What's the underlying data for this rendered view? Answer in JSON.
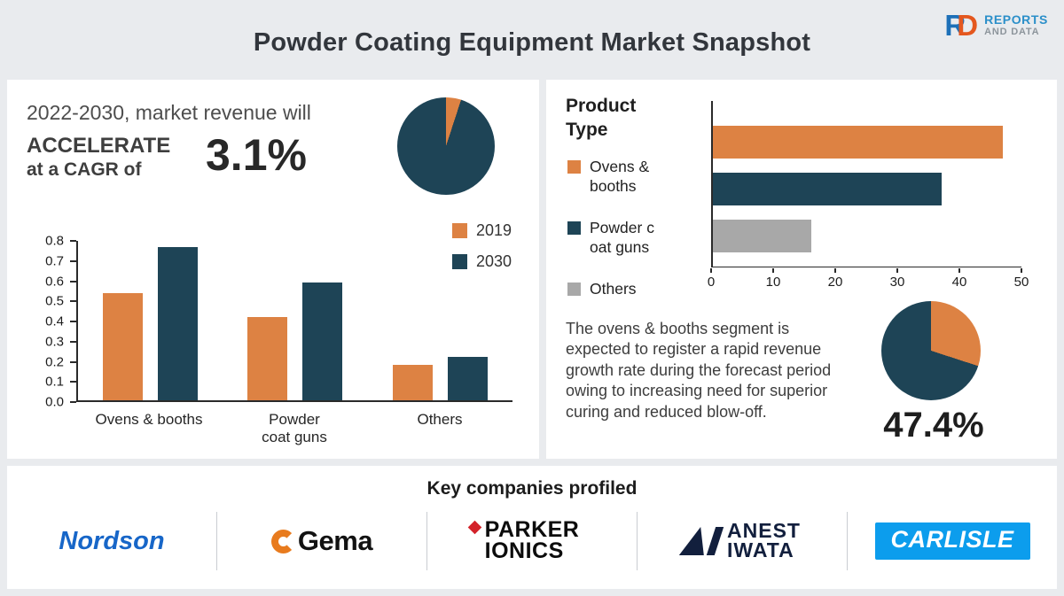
{
  "header": {
    "title": "Powder Coating Equipment Market Snapshot",
    "logo": {
      "mark_r": "R",
      "mark_d": "D",
      "name_line1": "REPORTS",
      "name_line2": "AND DATA"
    }
  },
  "colors": {
    "orange": "#DD8243",
    "dark_teal": "#1E4456",
    "gray": "#A8A8A8",
    "carlisle_blue": "#0C9DED"
  },
  "left_panel": {
    "intro_line": "2022-2030, market revenue will",
    "accelerate": "ACCELERATE",
    "cagr_line": "at a CAGR of",
    "cagr_value": "3.1%",
    "legend": [
      {
        "label": "2019",
        "color": "#DD8243"
      },
      {
        "label": "2030",
        "color": "#1E4456"
      }
    ]
  },
  "right_panel": {
    "heading": "Product Type",
    "legend": [
      {
        "label": "Ovens &\nbooths",
        "color": "#DD8243"
      },
      {
        "label": "Powder c\noat guns",
        "color": "#1E4456"
      },
      {
        "label": "Others",
        "color": "#A8A8A8"
      }
    ],
    "description": "The ovens & booths segment is expected to register a rapid revenue growth rate during the forecast period owing to increasing need for superior curing and reduced blow-off.",
    "share_value": "47.4%"
  },
  "companies": {
    "heading": "Key companies profiled",
    "items": [
      {
        "line1": "Nordson"
      },
      {
        "line1": "Gema"
      },
      {
        "line1": "PARKER",
        "line2": "IONICS"
      },
      {
        "line1": "ANEST",
        "line2": "IWATA"
      },
      {
        "line1": "CARLISLE"
      }
    ]
  },
  "chart_data": [
    {
      "type": "pie",
      "name": "cagr-pie",
      "title": "CAGR 3.1% donut-style pie",
      "values": [
        5,
        95
      ],
      "colors": [
        "#DD8243",
        "#1E4456"
      ]
    },
    {
      "type": "bar",
      "name": "revenue-bars",
      "title": "Market revenue by product type, 2019 vs 2030",
      "categories": [
        "Ovens & booths",
        "Powder\ncoat guns",
        "Others"
      ],
      "series": [
        {
          "name": "2019",
          "color": "#DD8243",
          "values": [
            0.54,
            0.42,
            0.18
          ]
        },
        {
          "name": "2030",
          "color": "#1E4456",
          "values": [
            0.77,
            0.59,
            0.22
          ]
        }
      ],
      "ylim": [
        0,
        0.8
      ],
      "yticks": [
        0,
        0.1,
        0.2,
        0.3,
        0.4,
        0.5,
        0.6,
        0.7,
        0.8
      ],
      "legend_position": "top-right",
      "grid": false
    },
    {
      "type": "bar-horizontal",
      "name": "product-type-bars",
      "title": "Product type share",
      "categories": [
        "Ovens & booths",
        "Powder coat guns",
        "Others"
      ],
      "values": [
        47,
        37,
        16
      ],
      "colors": [
        "#DD8243",
        "#1E4456",
        "#A8A8A8"
      ],
      "xlim": [
        0,
        50
      ],
      "xticks": [
        0,
        10,
        20,
        30,
        40,
        50
      ],
      "grid": false
    },
    {
      "type": "pie",
      "name": "share-pie",
      "title": "Ovens & booths revenue share 47.4% (visual proportion ~30/70)",
      "values": [
        30,
        70
      ],
      "colors": [
        "#DD8243",
        "#1E4456"
      ]
    }
  ]
}
